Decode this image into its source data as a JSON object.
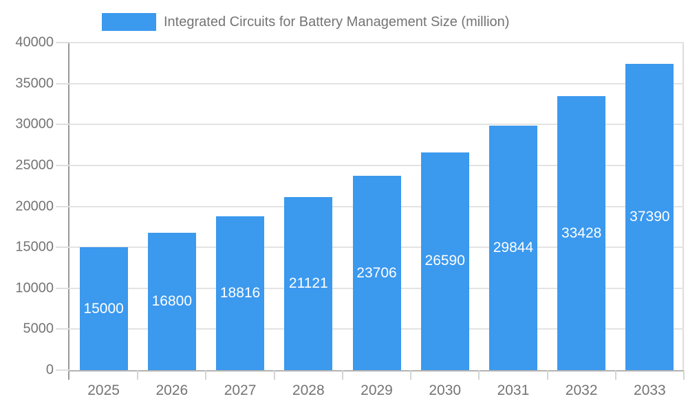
{
  "legend": {
    "label": "Integrated Circuits for Battery Management Size (million)"
  },
  "colors": {
    "bar": "#3b99ee",
    "bar_label_text": "#ffffff",
    "axis_text": "#747474",
    "gridline": "#e3e3e3",
    "y_axis_line": "#999999",
    "x_axis_line": "#b2b2b2",
    "right_border": "#dcdcdc"
  },
  "chart_data": {
    "type": "bar",
    "title": "Integrated Circuits for Battery Management Size (million)",
    "categories": [
      "2025",
      "2026",
      "2027",
      "2028",
      "2029",
      "2030",
      "2031",
      "2032",
      "2033"
    ],
    "values": [
      15000,
      16800,
      18816,
      21121,
      23706,
      26590,
      29844,
      33428,
      37390
    ],
    "series_name": "Integrated Circuits for Battery Management Size (million)",
    "xlabel": "",
    "ylabel": "",
    "ylim": [
      0,
      40000
    ],
    "yticks": [
      0,
      5000,
      10000,
      15000,
      20000,
      25000,
      30000,
      35000,
      40000
    ],
    "grid": true,
    "legend_position": "top-left",
    "bar_value_labels": "inside-center-white"
  }
}
